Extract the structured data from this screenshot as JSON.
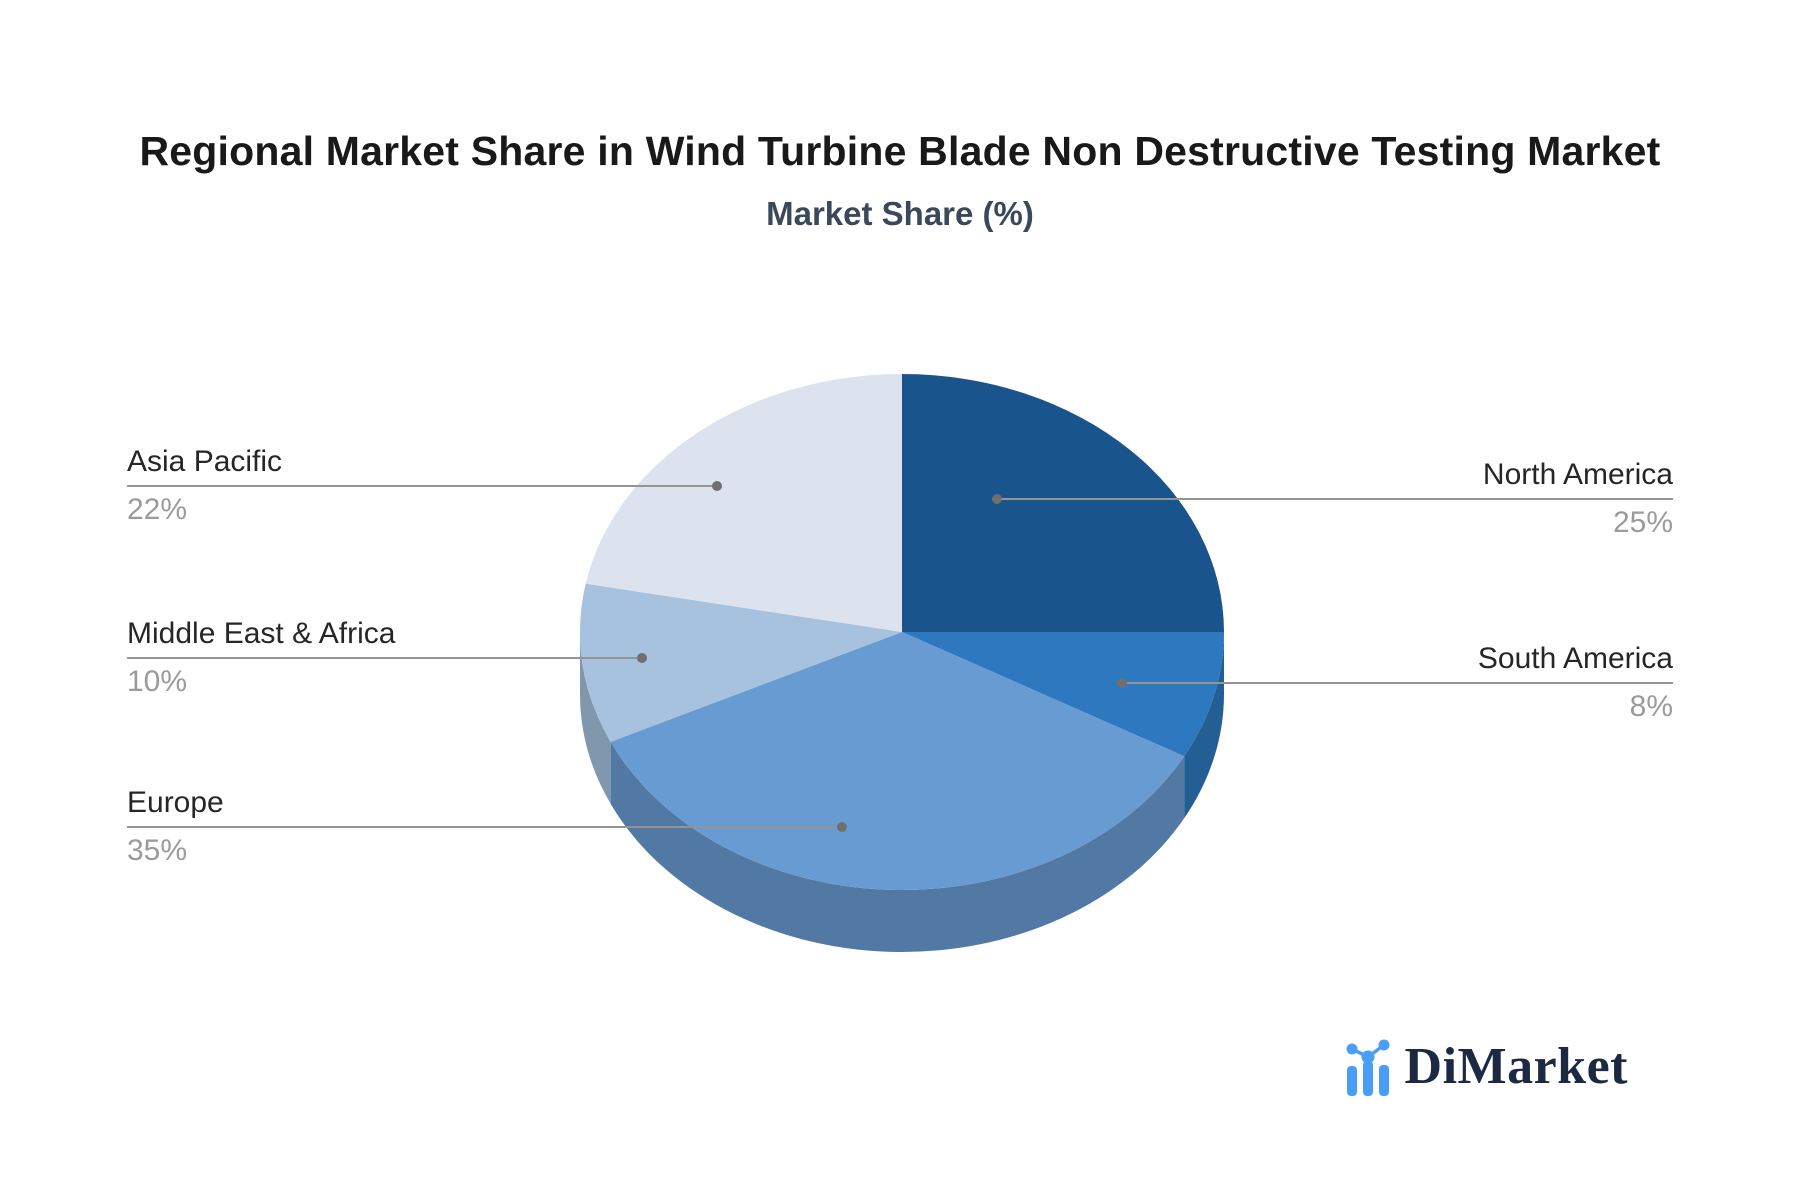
{
  "chart_data": {
    "type": "pie",
    "style": "3d",
    "title": "Regional Market Share in Wind Turbine Blade Non Destructive Testing Market",
    "subtitle": "Market Share (%)",
    "unit": "%",
    "categories": [
      "North America",
      "South America",
      "Europe",
      "Middle East & Africa",
      "Asia Pacific"
    ],
    "values": [
      25,
      8,
      35,
      10,
      22
    ],
    "labels": [
      "25%",
      "8%",
      "35%",
      "10%",
      "22%"
    ],
    "colors": [
      "#1a548c",
      "#2d78be",
      "#689bd2",
      "#a6c2de",
      "#dce3ee"
    ],
    "start_angle_deg": 0,
    "direction": "clockwise",
    "legend_position": "callout-labels",
    "grid": false
  },
  "callout_style": {
    "line_color": "#949494",
    "dot_color": "#6f6f6f",
    "name_color": "#262626",
    "value_color": "#9b9b9b"
  },
  "branding": {
    "logo_text": "DiMarket",
    "logo_text_color": "#1b2942",
    "icon_color": "#499ef7",
    "icon_name": "bar-chart-trend-icon"
  },
  "colors": {
    "background": "#ffffff",
    "title": "#191919",
    "subtitle": "#3b4859"
  }
}
